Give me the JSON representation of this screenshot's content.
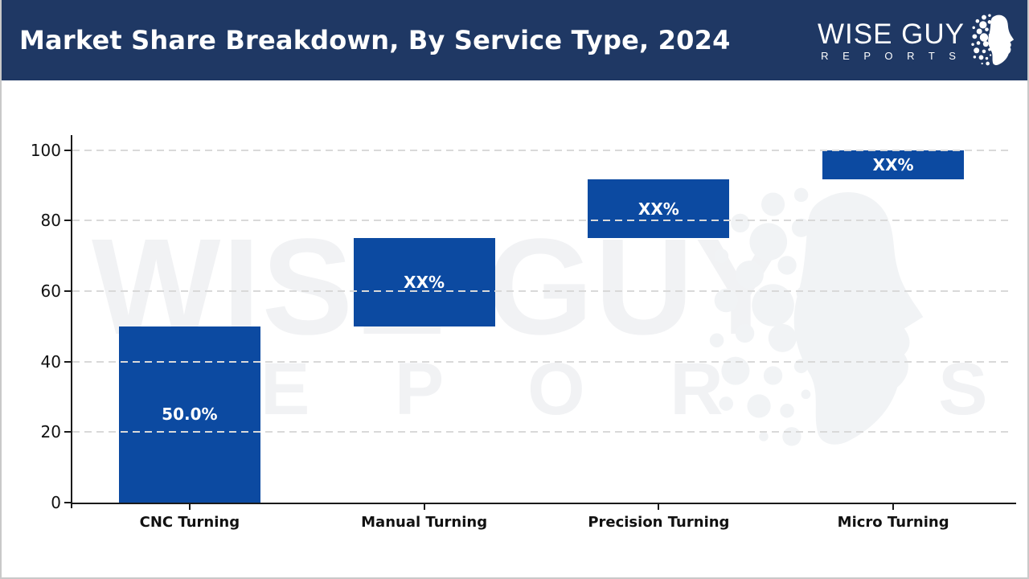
{
  "header": {
    "title": "Market Share Breakdown, By Service Type, 2024",
    "logo": {
      "line1": "WISE GUY",
      "line2": "R E P O R T S"
    }
  },
  "watermark": {
    "line1": "WISE GUY",
    "line2": "R E P O R T S"
  },
  "chart_data": {
    "type": "bar",
    "subtype": "floating-waterfall",
    "title": "Market Share Breakdown, By Service Type, 2024",
    "categories": [
      "CNC Turning",
      "Manual Turning",
      "Precision Turning",
      "Micro Turning"
    ],
    "segments": [
      {
        "category": "CNC Turning",
        "start": 0,
        "end": 50,
        "label": "50.0%"
      },
      {
        "category": "Manual Turning",
        "start": 50,
        "end": 75,
        "label": "XX%"
      },
      {
        "category": "Precision Turning",
        "start": 75,
        "end": 91.7,
        "label": "XX%"
      },
      {
        "category": "Micro Turning",
        "start": 91.7,
        "end": 100,
        "label": "XX%"
      }
    ],
    "xlabel": "",
    "ylabel": "",
    "ylim": [
      0,
      100
    ],
    "yticks": [
      0,
      20,
      40,
      60,
      80,
      100
    ],
    "grid": {
      "horizontal": true,
      "style": "dashed",
      "above_bars": true
    },
    "legend": "none",
    "colors": {
      "bar": "#0C4AA1",
      "bar_label": "#FFFFFF",
      "header_bg": "#1F3864",
      "grid_line": "#D9D9D9",
      "axis": "#1A1A1A",
      "watermark": "#F1F2F4"
    }
  }
}
